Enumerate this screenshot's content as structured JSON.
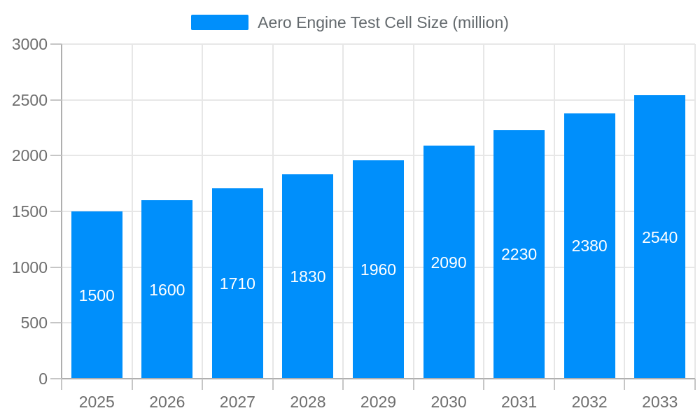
{
  "chart_data": {
    "type": "bar",
    "title": "Aero Engine Test Cell Size (million)",
    "legend_position": "top",
    "categories": [
      "2025",
      "2026",
      "2027",
      "2028",
      "2029",
      "2030",
      "2031",
      "2032",
      "2033"
    ],
    "values": [
      1500,
      1600,
      1710,
      1830,
      1960,
      2090,
      2230,
      2380,
      2540
    ],
    "xlabel": "",
    "ylabel": "",
    "ylim": [
      0,
      3000
    ],
    "yticks": [
      0,
      500,
      1000,
      1500,
      2000,
      2500,
      3000
    ],
    "grid": true,
    "colors": {
      "bar": "#008FFB",
      "data_label": "#FFFFFF",
      "axis_label": "#6E6E6E",
      "legend_label": "#63696D",
      "gridline": "#E7E7E7",
      "axis_line": "#AFAFAF",
      "tick": "#C6C6C6",
      "background": "#FFFFFF"
    }
  }
}
